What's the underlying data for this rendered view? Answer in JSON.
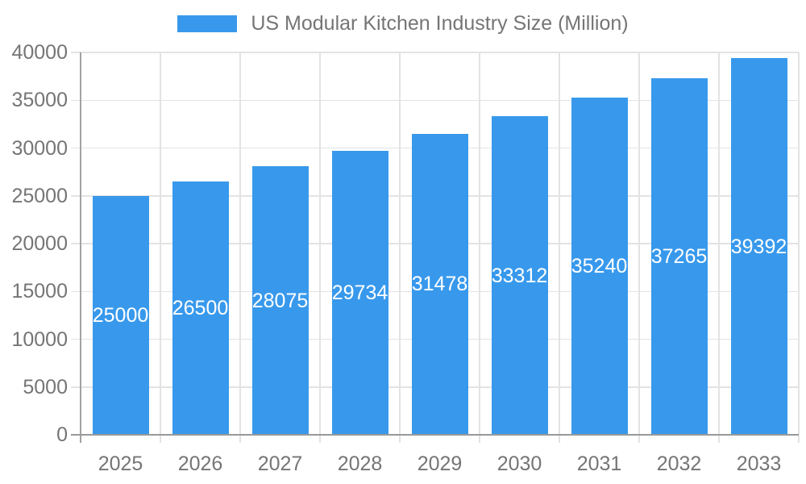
{
  "chart_data": {
    "type": "bar",
    "title": "US Modular Kitchen Industry Size (Million)",
    "legend": {
      "label": "US Modular Kitchen Industry Size (Million)",
      "position": "top"
    },
    "categories": [
      "2025",
      "2026",
      "2027",
      "2028",
      "2029",
      "2030",
      "2031",
      "2032",
      "2033"
    ],
    "values": [
      25000,
      26500,
      28075,
      29734,
      31478,
      33312,
      35240,
      37265,
      39392
    ],
    "xlabel": "",
    "ylabel": "",
    "ylim": [
      0,
      40000
    ],
    "yticks": [
      0,
      5000,
      10000,
      15000,
      20000,
      25000,
      30000,
      35000,
      40000
    ],
    "grid": true,
    "colors": {
      "bar": "#3899EC",
      "bar_label": "#FFFFFF",
      "grid_line": "#E3E3E3",
      "axis_line": "#A3A3A3",
      "baseline": "#999999",
      "tick_text": "#757575",
      "background": "#FFFFFF"
    }
  }
}
